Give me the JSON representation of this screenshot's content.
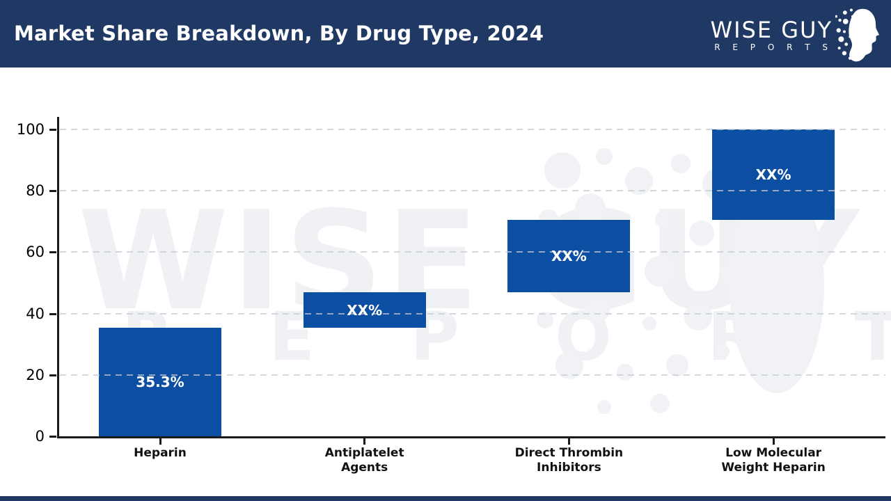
{
  "header": {
    "title": "Market Share Breakdown, By Drug Type, 2024",
    "logo_line1": "WISE GUY",
    "logo_line2": "R E P O R T S",
    "bg_color": "#1f3864"
  },
  "watermark": {
    "line1": "WISE GUY",
    "line2": "R E P O R T S"
  },
  "chart_data": {
    "type": "bar",
    "subtype": "waterfall",
    "title": "Market Share Breakdown, By Drug Type, 2024",
    "categories": [
      "Heparin",
      "Antiplatelet\nAgents",
      "Direct Thrombin\nInhibitors",
      "Low Molecular\nWeight Heparin"
    ],
    "bars": [
      {
        "category": "Heparin",
        "start": 0,
        "end": 35.3,
        "label": "35.3%"
      },
      {
        "category": "Antiplatelet Agents",
        "start": 35.3,
        "end": 47,
        "label": "XX%"
      },
      {
        "category": "Direct Thrombin Inhibitors",
        "start": 47,
        "end": 70.5,
        "label": "XX%"
      },
      {
        "category": "Low Molecular Weight Heparin",
        "start": 70.5,
        "end": 100,
        "label": "XX%"
      }
    ],
    "ylim": [
      0,
      100
    ],
    "yticks": [
      0,
      20,
      40,
      60,
      80,
      100
    ],
    "grid": "horizontal-dashed",
    "legend": "none",
    "bar_color": "#0b4ea2",
    "label_color": "#ffffff",
    "axis_color": "#1a1a1a",
    "gridline_color": "#d9d9d9"
  }
}
